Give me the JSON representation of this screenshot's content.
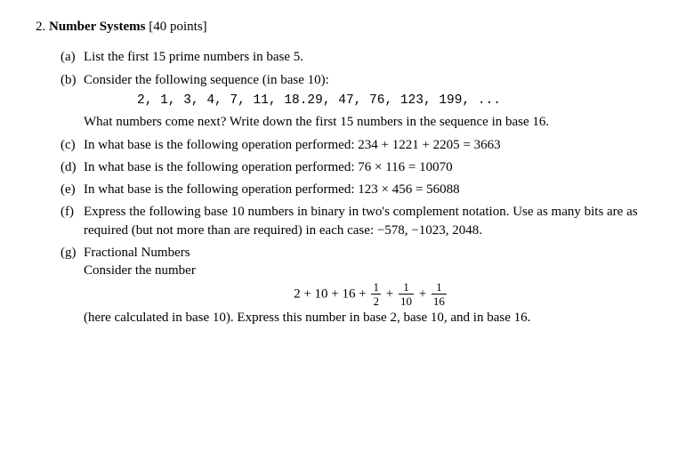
{
  "heading": {
    "num": "2.",
    "title_bold": "Number Systems",
    "points": "[40 points]"
  },
  "items": {
    "a": {
      "label": "(a)",
      "text": "List the first 15 prime numbers in base 5."
    },
    "b": {
      "label": "(b)",
      "intro": "Consider the following sequence (in base 10):",
      "sequence": "2, 1, 3, 4, 7, 11, 18.29, 47, 76, 123, 199, ...",
      "follow": "What numbers come next? Write down the first 15 numbers in the sequence in base 16."
    },
    "c": {
      "label": "(c)",
      "text": "In what base is the following operation performed: 234 + 1221 + 2205 = 3663"
    },
    "d": {
      "label": "(d)",
      "text": "In what base is the following operation performed: 76 × 116 = 10070"
    },
    "e": {
      "label": "(e)",
      "text": "In what base is the following operation performed: 123 × 456 = 56088"
    },
    "f": {
      "label": "(f)",
      "text": "Express the following base 10 numbers in binary in two's complement notation. Use as many bits are as required (but not more than are required) in each case: −578, −1023, 2048."
    },
    "g": {
      "label": "(g)",
      "line1": "Fractional Numbers",
      "line2": "Consider the number",
      "formula_prefix": "2 + 10 + 16 +",
      "frac1_num": "1",
      "frac1_den": "2",
      "plus": "+",
      "frac2_num": "1",
      "frac2_den": "10",
      "frac3_num": "1",
      "frac3_den": "16",
      "closing": "(here calculated in base 10). Express this number in base 2, base 10, and in base 16."
    }
  }
}
